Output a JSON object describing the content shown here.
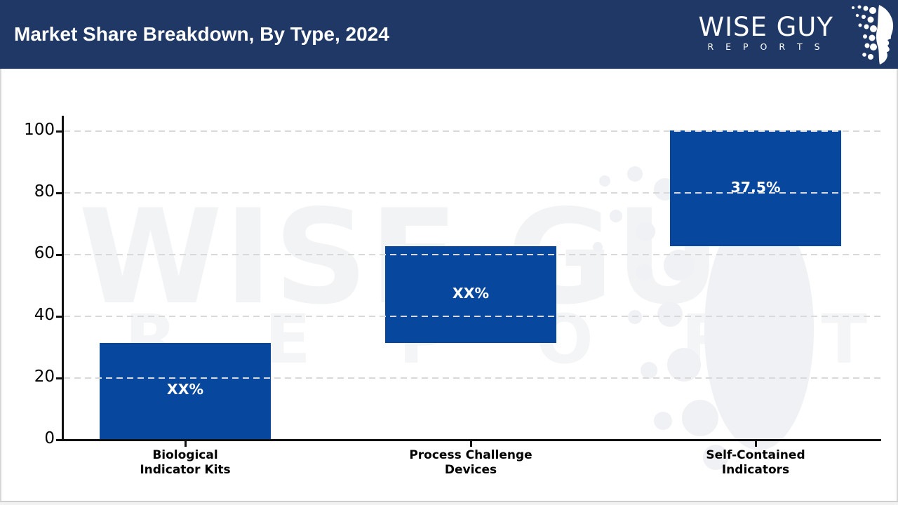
{
  "header": {
    "title": "Market Share Breakdown, By Type, 2024",
    "logo": {
      "line1": "WISE GUY",
      "line2": "R E P O R T S"
    }
  },
  "watermark": {
    "line1": "WISE GUY",
    "line2": "R E P O R T S"
  },
  "chart_data": {
    "type": "bar",
    "subtype": "floating-segment percentage breakdown (waterfall style)",
    "title": "Market Share Breakdown, By Type, 2024",
    "categories": [
      "Biological Indicator Kits",
      "Process Challenge Devices",
      "Self-Contained Indicators"
    ],
    "category_label_lines": [
      [
        "Biological",
        "Indicator Kits"
      ],
      [
        "Process Challenge",
        "Devices"
      ],
      [
        "Self-Contained",
        "Indicators"
      ]
    ],
    "segments": [
      {
        "category": "Biological Indicator Kits",
        "start": 0,
        "end": 31.25,
        "label": "XX%"
      },
      {
        "category": "Process Challenge Devices",
        "start": 31.25,
        "end": 62.5,
        "label": "XX%"
      },
      {
        "category": "Self-Contained Indicators",
        "start": 62.5,
        "end": 100,
        "label": "37.5%"
      }
    ],
    "xlabel": "",
    "ylabel": "",
    "ylim": [
      0,
      104.5
    ],
    "yticks": [
      0,
      20,
      40,
      60,
      80,
      100
    ],
    "grid": "horizontal dashed, drawn over bars",
    "legend": "none",
    "colors": {
      "bar": "#07479e",
      "header_bg": "#1f3865",
      "grid": "#d9d9d9",
      "axis": "#111111",
      "value_label": "#ffffff",
      "watermark": "#f2f3f5"
    }
  }
}
